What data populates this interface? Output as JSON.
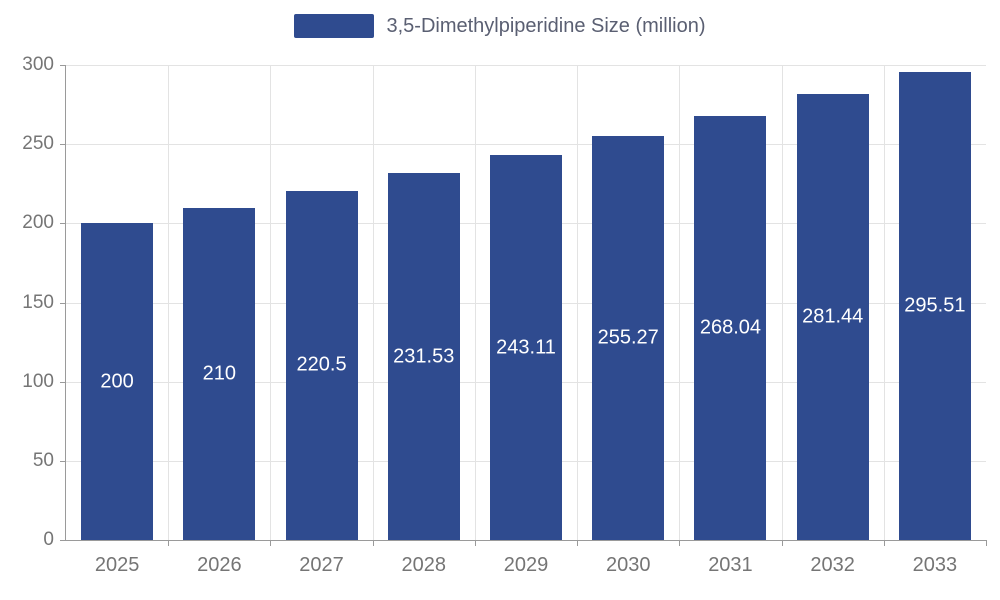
{
  "legend": {
    "label": "3,5-Dimethylpiperidine Size (million)"
  },
  "colors": {
    "bar": "#2f4b8f",
    "grid": "#e3e3e3",
    "axis": "#9a9a9a",
    "tick_text": "#757575",
    "bar_label_text": "#ffffff",
    "legend_text": "#5a5f72"
  },
  "chart_data": {
    "type": "bar",
    "title": "3,5-Dimethylpiperidine Size (million)",
    "categories": [
      "2025",
      "2026",
      "2027",
      "2028",
      "2029",
      "2030",
      "2031",
      "2032",
      "2033"
    ],
    "values": [
      200,
      210,
      220.5,
      231.53,
      243.11,
      255.27,
      268.04,
      281.44,
      295.51
    ],
    "xlabel": "",
    "ylabel": "",
    "ylim": [
      0,
      300
    ],
    "yticks": [
      0,
      50,
      100,
      150,
      200,
      250,
      300
    ],
    "grid": true,
    "legend_position": "top",
    "bar_color": "#2f4b8f",
    "label_position": "inside-middle",
    "label_color": "#ffffff"
  }
}
